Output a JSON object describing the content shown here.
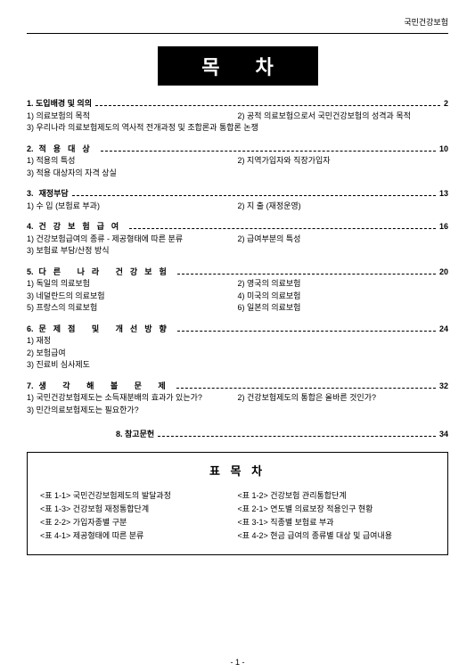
{
  "header": {
    "right": "국민건강보험"
  },
  "main_title": "목차",
  "toc": {
    "s1": {
      "title": "1. 도입배경 및 의의",
      "page": "2",
      "r1l": "1) 의료보험의 목적",
      "r1r": "2) 공적 의료보험으로서 국민건강보험의 성격과 목적",
      "r2": "3) 우리나라 의료보험제도의 역사적 전개과정 및 조합론과 통합론 논쟁"
    },
    "s2": {
      "num": "2.",
      "title": "적용대상",
      "page": "10",
      "r1l": "1) 적용의 특성",
      "r1r": "2) 지역가입자와 직장가입자",
      "r2": "3) 적용 대상자의 자격 상실"
    },
    "s3": {
      "num": "3.",
      "title": "재정부담",
      "page": "13",
      "r1l": "1) 수 입 (보험료 부과)",
      "r1r": "2) 지 출 (재정운영)"
    },
    "s4": {
      "num": "4.",
      "title": "건강보험급여",
      "page": "16",
      "r1l": "1) 건강보험급여의 종류 - 제공형태에 따른 분류",
      "r1r": "2) 급여부분의 특성",
      "r2": "3) 보험료 부담/산정 방식"
    },
    "s5": {
      "num": "5.",
      "title": "다른   나라   건강보험",
      "page": "20",
      "r1l": "1) 독일의 의료보험",
      "r1r": "2) 영국의 의료보험",
      "r2l": "3) 네덜란드의 의료보험",
      "r2r": "4) 미국의 의료보험",
      "r3l": "5) 프랑스의 의료보험",
      "r3r": "6) 일본의 의료보험"
    },
    "s6": {
      "num": "6.",
      "title": "문제점   및   개선방향",
      "page": "24",
      "r1": "1) 재정",
      "r2": "2) 보험급여",
      "r3": "3) 진료비 심사제도"
    },
    "s7": {
      "num": "7.",
      "title": "생 각   해   볼   문 제",
      "page": "32",
      "r1l": "1) 국민건강보험제도는 소득재분배의 효과가 있는가?",
      "r1r": "2) 건강보험제도의 통합은 올바른 것인가?",
      "r2": "3) 민간의료보험제도는 필요한가?"
    },
    "s8": {
      "title": "8. 참고문헌",
      "page": "34"
    }
  },
  "table_box": {
    "title": "표 목 차",
    "rows": [
      {
        "l": "<표 1-1> 국민건강보험제도의 발달과정",
        "r": "<표 1-2> 건강보험 관리통합단계"
      },
      {
        "l": "<표 1-3> 건강보험 재정통합단계",
        "r": "<표 2-1> 연도별 의료보장 적용인구 현황"
      },
      {
        "l": "<표 2-2> 가입자종별 구분",
        "r": "<표 3-1> 직종별 보험료 부과"
      },
      {
        "l": "<표 4-1> 제공형태에 따른 분류",
        "r": "<표 4-2> 현금 급여의 종류별 대상 및 급여내용"
      }
    ]
  },
  "page_number": "- 1 -"
}
